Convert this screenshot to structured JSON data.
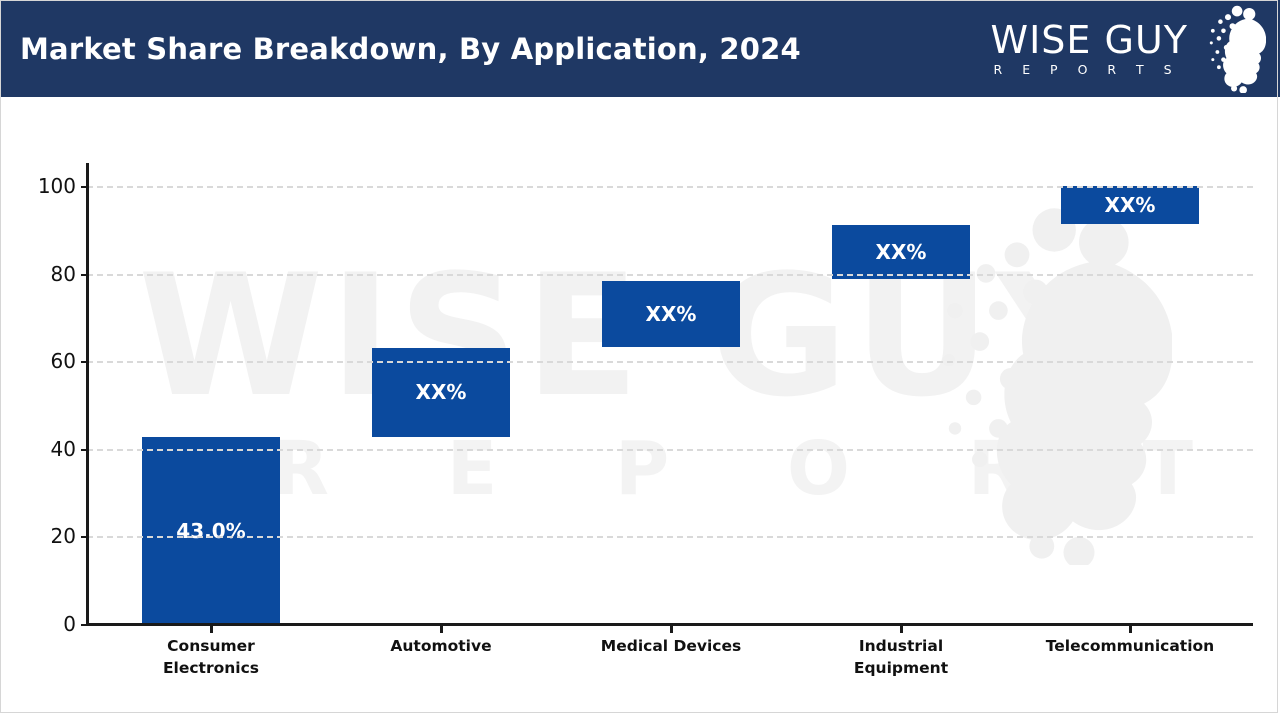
{
  "header": {
    "title": "Market Share Breakdown, By Application, 2024",
    "brand": {
      "line1": "WISE GUY",
      "line2": "R E P O R T S"
    }
  },
  "watermark": {
    "line1": "WISE GUY",
    "line2": "R E P O R T S"
  },
  "colors": {
    "header_bg": "#1f3864",
    "bar": "#0b4a9e",
    "bar_label": "#ffffff",
    "grid": "#d9d9d9",
    "axis": "#1a1a1a",
    "watermark": "#f2f2f2"
  },
  "chart_data": {
    "type": "bar",
    "subtype": "waterfall",
    "title": "Market Share Breakdown, By Application, 2024",
    "xlabel": "",
    "ylabel": "",
    "ylim": [
      0,
      105
    ],
    "y_ticks": [
      0,
      20,
      40,
      60,
      80,
      100
    ],
    "grid": "horizontal dashed, drawn over bars",
    "legend": "none",
    "categories": [
      "Consumer Electronics",
      "Automotive",
      "Medical Devices",
      "Industrial Equipment",
      "Telecommunication"
    ],
    "segments": [
      {
        "category": "Consumer Electronics",
        "lines": [
          "Consumer",
          "Electronics"
        ],
        "start": 0,
        "end": 43.0,
        "label": "43.0%"
      },
      {
        "category": "Automotive",
        "lines": [
          "Automotive"
        ],
        "start": 43.0,
        "end": 63.2,
        "label": "XX%"
      },
      {
        "category": "Medical Devices",
        "lines": [
          "Medical Devices"
        ],
        "start": 63.5,
        "end": 78.5,
        "label": "XX%"
      },
      {
        "category": "Industrial Equipment",
        "lines": [
          "Industrial",
          "Equipment"
        ],
        "start": 79.0,
        "end": 91.3,
        "label": "XX%"
      },
      {
        "category": "Telecommunication",
        "lines": [
          "Telecommunication"
        ],
        "start": 91.5,
        "end": 100.2,
        "label": "XX%"
      }
    ]
  }
}
